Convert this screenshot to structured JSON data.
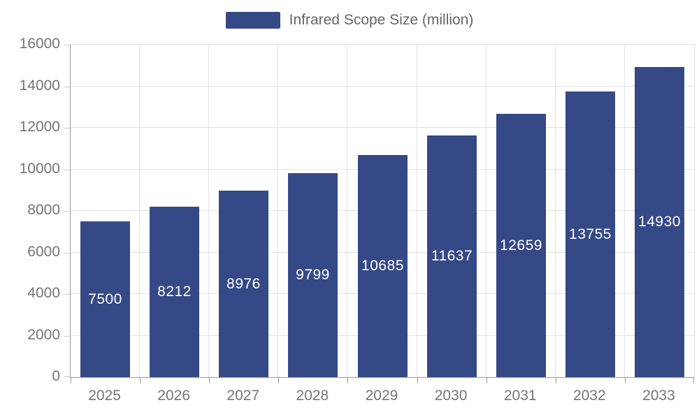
{
  "chart_data": {
    "type": "bar",
    "title": "",
    "legend": "Infrared Scope Size (million)",
    "legend_position": "top-center",
    "categories": [
      "2025",
      "2026",
      "2027",
      "2028",
      "2029",
      "2030",
      "2031",
      "2032",
      "2033"
    ],
    "values": [
      7500,
      8212,
      8976,
      9799,
      10685,
      11637,
      12659,
      13755,
      14930
    ],
    "xlabel": "",
    "ylabel": "",
    "ylim": [
      0,
      16000
    ],
    "ytick_step": 2000,
    "ytick_labels": [
      "0",
      "2000",
      "4000",
      "6000",
      "8000",
      "10000",
      "12000",
      "14000",
      "16000"
    ],
    "grid": true,
    "colors": {
      "bar": "#354986",
      "bar_label": "#ffffff",
      "legend_text": "#666666",
      "axis_label": "#757575",
      "axis_line": "#999999",
      "grid_line": "#e2e2e8",
      "y_tick": "#cccccc",
      "x_tick": "#999999"
    }
  }
}
